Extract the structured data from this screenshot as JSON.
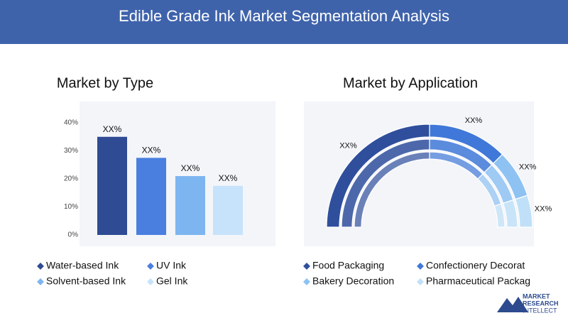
{
  "header": {
    "title": "Edible Grade Ink Market Segmentation Analysis"
  },
  "chart_data": [
    {
      "type": "bar",
      "title": "Market by Type",
      "categories": [
        "Water-based Ink",
        "UV Ink",
        "Solvent-based Ink",
        "Gel Ink"
      ],
      "values": [
        35,
        27.5,
        21,
        17.5
      ],
      "value_labels": [
        "XX%",
        "XX%",
        "XX%",
        "XX%"
      ],
      "colors": [
        "#2f4b94",
        "#4a7fe0",
        "#7db5f0",
        "#c6e3fb"
      ],
      "ylim": [
        0,
        40
      ],
      "yticks": [
        {
          "value": 0,
          "label": "0%"
        },
        {
          "value": 10,
          "label": "10%"
        },
        {
          "value": 20,
          "label": "20%"
        },
        {
          "value": 30,
          "label": "30%"
        },
        {
          "value": 40,
          "label": "40%"
        }
      ]
    },
    {
      "type": "pie",
      "title": "Market by Application",
      "categories": [
        "Food Packaging",
        "Confectionery Decorat",
        "Bakery Decoration",
        "Pharmaceutical Packag"
      ],
      "values": [
        50,
        25,
        15,
        10
      ],
      "value_labels": [
        "XX%",
        "XX%",
        "XX%",
        "XX%"
      ],
      "colors": [
        "#2f4f9c",
        "#3f78d8",
        "#8ec2f2",
        "#bfe0f8"
      ]
    }
  ],
  "logo": {
    "line1": "MARKET",
    "line2": "RESEARCH",
    "line3": "INTELLECT"
  }
}
